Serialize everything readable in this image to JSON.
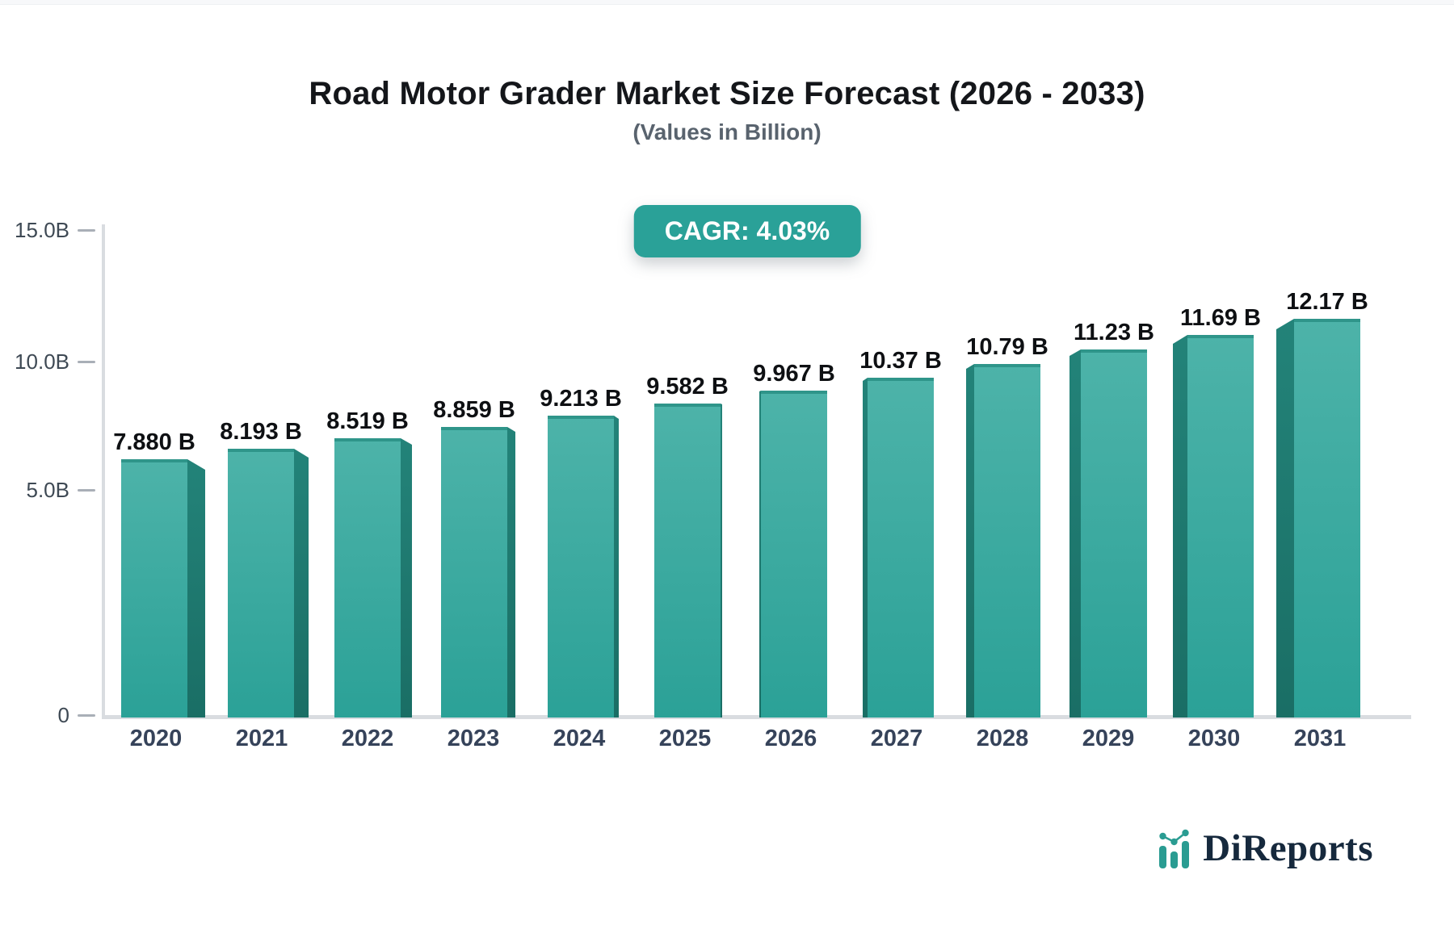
{
  "page": {
    "brand": "DiReports"
  },
  "chart_data": {
    "type": "bar",
    "title": "Road Motor Grader Market Size Forecast (2026 - 2033)",
    "subtitle": "(Values in Billion)",
    "cagr_label": "CAGR: 4.03%",
    "categories": [
      "2020",
      "2021",
      "2022",
      "2023",
      "2024",
      "2025",
      "2026",
      "2027",
      "2028",
      "2029",
      "2030",
      "2031"
    ],
    "values": [
      7.88,
      8.193,
      8.519,
      8.859,
      9.213,
      9.582,
      9.967,
      10.37,
      10.79,
      11.23,
      11.69,
      12.17
    ],
    "value_labels": [
      "7.880 B",
      "8.193 B",
      "8.519 B",
      "8.859 B",
      "9.213 B",
      "9.582 B",
      "9.967 B",
      "10.37 B",
      "10.79 B",
      "11.23 B",
      "11.69 B",
      "12.17 B"
    ],
    "y_ticks": [
      "15.0B",
      "10.0B",
      "5.0B",
      "0"
    ],
    "ylim": [
      0,
      15
    ],
    "unit": "Billion",
    "grid": false,
    "legend": false,
    "style": "3d-perspective-columns",
    "colors": {
      "bar_face_top": "#4db3a9",
      "bar_face_bottom": "#2ba197",
      "bar_side_top": "#238379",
      "bar_side_bottom": "#1a6e65",
      "bar_top_edge": "#2f958a",
      "axis_line": "#d9dce0",
      "tick_mark": "#a9afb7",
      "tick_label": "#3e4954",
      "year_label": "#36435a",
      "value_label": "#0e1013",
      "badge_bg": "#2aa198",
      "badge_text": "#ffffff",
      "title_text": "#14161a",
      "subtitle_text": "#59636e",
      "brand_text": "#16293d",
      "brand_icon": "#2a9c92"
    }
  }
}
